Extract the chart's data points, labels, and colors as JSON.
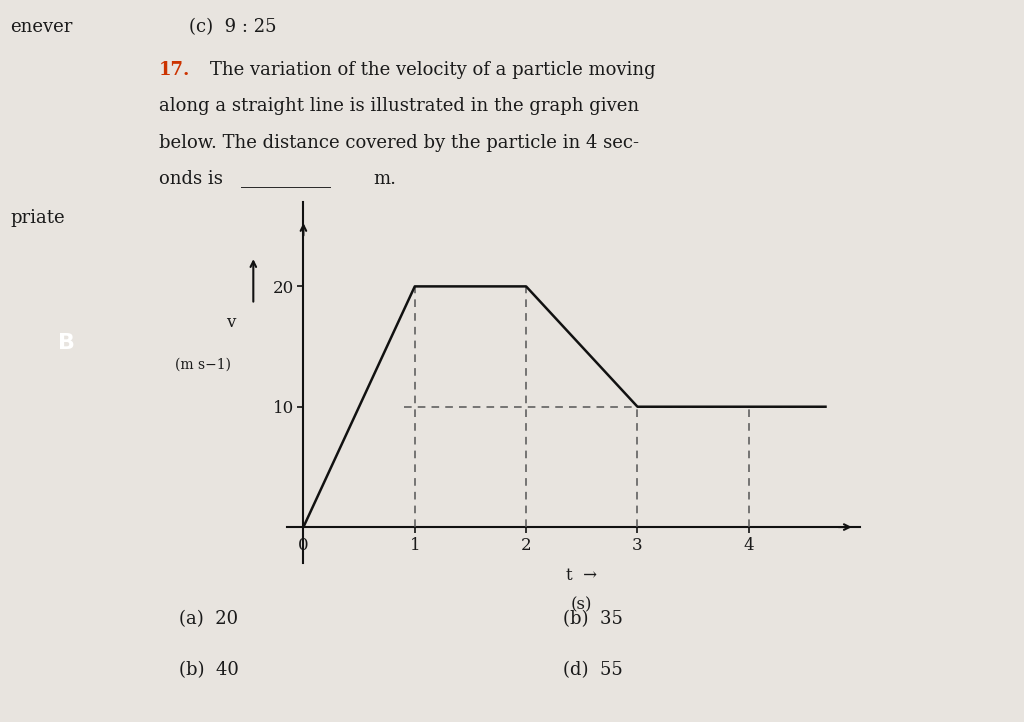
{
  "graph_x": [
    0,
    1,
    2,
    3,
    4,
    4.7
  ],
  "graph_y": [
    0,
    20,
    20,
    10,
    10,
    10
  ],
  "dashed_color": "#555555",
  "line_color": "#111111",
  "page_bg": "#e8e4df",
  "left_bar_color": "#cc4400",
  "b_badge_color": "#cc4400",
  "text_color": "#1a1a1a",
  "fig_w": 10.24,
  "fig_h": 7.22,
  "top_text_c9_25": "(c)  9 : 25",
  "q17_num": "17.",
  "q17_line1": "The variation of the velocity of a particle moving",
  "q17_line2": "along a straight line is illustrated in the graph given",
  "q17_line3": "below. The distance covered by the particle in 4 sec-",
  "q17_line4": "onds is",
  "q17_m": "m.",
  "opt_a": "(a)  20",
  "opt_b": "(b)  40",
  "opt_b2": "(b)  35",
  "opt_d": "(d)  55",
  "xlabel_t": "t",
  "xlabel_arrow": "→",
  "xlabel_s": "(s)",
  "ylabel_v": "v",
  "ylabel_unit": "(m s",
  "ylabel_sup": "−1",
  "ylabel_end": ")",
  "tick_0": "0",
  "tick_1": "1",
  "tick_2": "2",
  "tick_3": "3",
  "tick_4": "4",
  "tick_10": "10",
  "tick_20": "20"
}
